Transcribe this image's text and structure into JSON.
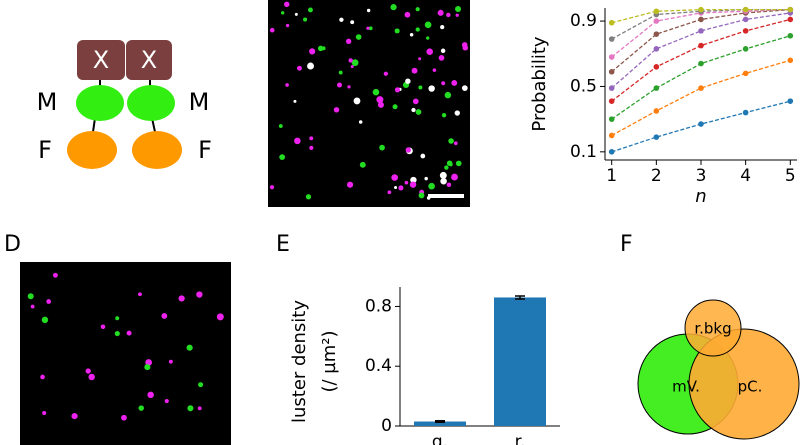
{
  "panel_labels": [
    "D",
    "E",
    "F"
  ],
  "construct": {
    "labels": [
      "X",
      "X",
      "M",
      "M",
      "F",
      "F"
    ]
  },
  "venn": {
    "labels": [
      "r.bkg",
      "mV.",
      "pC."
    ]
  },
  "chart_data": [
    {
      "type": "line",
      "xlabel": "n",
      "ylabel": "Probability",
      "x": [
        1,
        2,
        3,
        4,
        5
      ],
      "xlim": [
        0.85,
        5.15
      ],
      "xticks": [
        1,
        2,
        3,
        4,
        5
      ],
      "ylim": [
        0.05,
        0.98
      ],
      "yticks": [
        0.1,
        0.5,
        0.9
      ],
      "series": [
        {
          "color": "#1f77b4",
          "values": [
            0.1,
            0.19,
            0.27,
            0.34,
            0.41
          ]
        },
        {
          "color": "#ff7f0e",
          "values": [
            0.2,
            0.35,
            0.49,
            0.58,
            0.66
          ]
        },
        {
          "color": "#2ca02c",
          "values": [
            0.3,
            0.49,
            0.64,
            0.73,
            0.81
          ]
        },
        {
          "color": "#d62728",
          "values": [
            0.41,
            0.62,
            0.75,
            0.84,
            0.91
          ]
        },
        {
          "color": "#9467bd",
          "values": [
            0.49,
            0.73,
            0.84,
            0.91,
            0.95
          ]
        },
        {
          "color": "#8c564b",
          "values": [
            0.59,
            0.82,
            0.91,
            0.95,
            0.97
          ]
        },
        {
          "color": "#e377c2",
          "values": [
            0.68,
            0.9,
            0.95,
            0.96,
            0.97
          ]
        },
        {
          "color": "#7f7f7f",
          "values": [
            0.79,
            0.94,
            0.96,
            0.97,
            0.97
          ]
        },
        {
          "color": "#bcbd22",
          "values": [
            0.89,
            0.96,
            0.97,
            0.97,
            0.97
          ]
        }
      ]
    },
    {
      "type": "bar",
      "ylabel": [
        "luster density",
        "(/ µm²)"
      ],
      "categories": [
        "g.",
        "r."
      ],
      "values": [
        0.03,
        0.86
      ],
      "errors": [
        0.005,
        0.01
      ],
      "color": "#1f77b4",
      "ylim": [
        0,
        0.93
      ],
      "yticks": [
        0,
        0.4,
        0.8
      ]
    }
  ]
}
